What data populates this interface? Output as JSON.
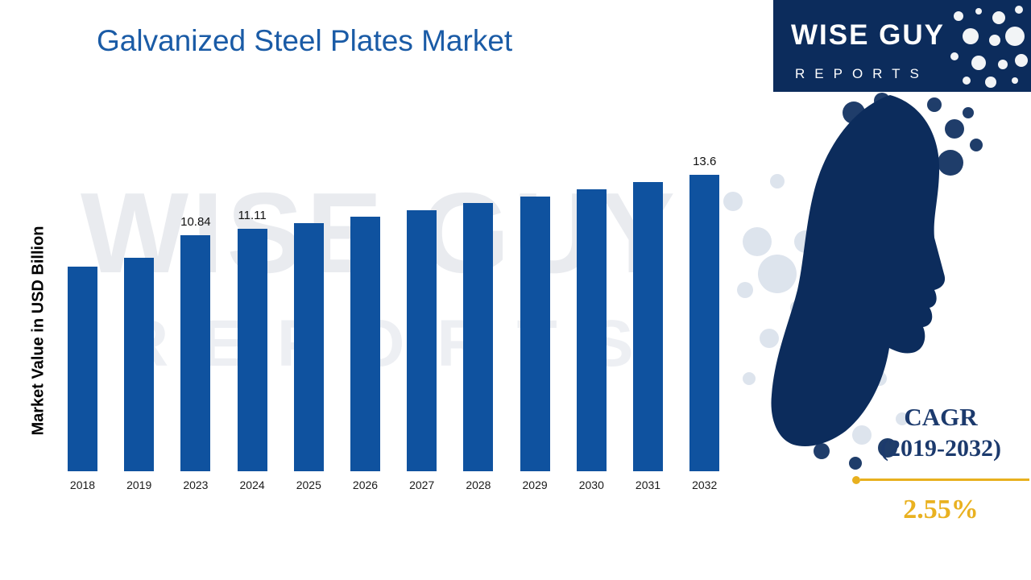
{
  "page": {
    "title": "Galvanized Steel Plates Market"
  },
  "logo": {
    "line1": "WISE GUY",
    "line2": "REPORTS"
  },
  "watermark": {
    "line1": "WISE GUY",
    "line2": "REPORTS"
  },
  "cagr": {
    "label": "CAGR",
    "range": "(2019-2032)",
    "value": "2.55%"
  },
  "chart_data": {
    "type": "bar",
    "title": "Galvanized Steel Plates Market",
    "xlabel": "",
    "ylabel": "Market Value in USD Billion",
    "categories": [
      "2018",
      "2019",
      "2023",
      "2024",
      "2025",
      "2026",
      "2027",
      "2028",
      "2029",
      "2030",
      "2031",
      "2032"
    ],
    "values": [
      9.4,
      9.8,
      10.84,
      11.11,
      11.4,
      11.69,
      11.99,
      12.3,
      12.61,
      12.93,
      13.26,
      13.6
    ],
    "bar_labels": [
      "",
      "",
      "10.84",
      "11.11",
      "",
      "",
      "",
      "",
      "",
      "",
      "",
      "13.6"
    ],
    "ylim": [
      0,
      14.6
    ],
    "grid": false,
    "legend": "none",
    "bar_color": "#0f529f",
    "colors": {
      "navy": "#0c2c5c",
      "gold": "#e8b01e",
      "title_blue": "#1a5ba6",
      "watermark_gray": "#e9ebef"
    }
  }
}
